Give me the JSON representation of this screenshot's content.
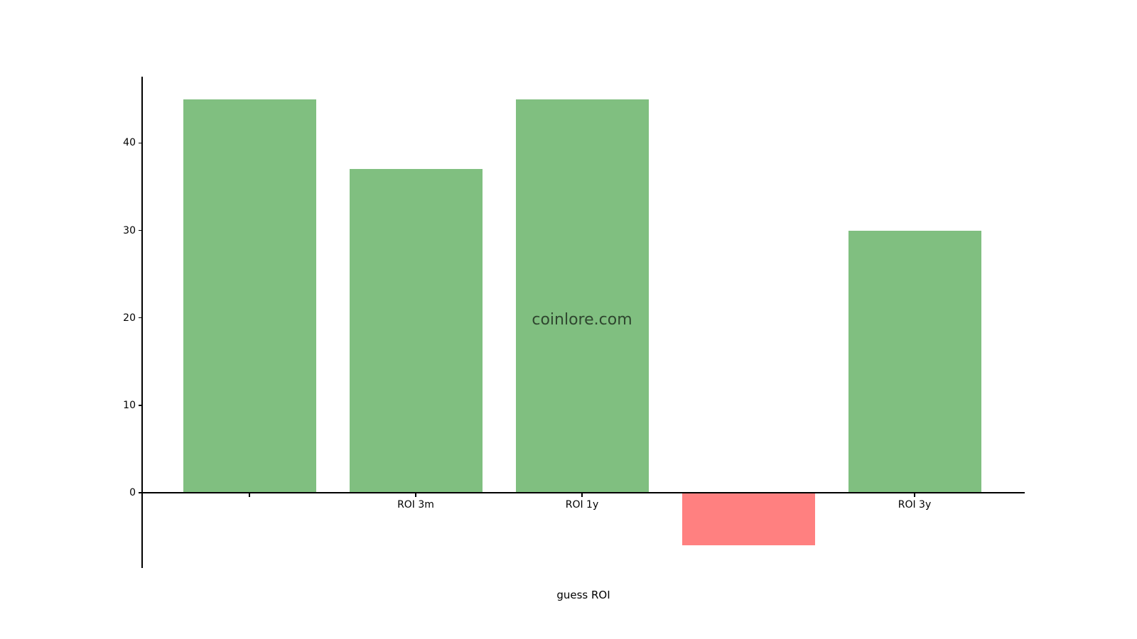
{
  "chart_data": {
    "type": "bar",
    "title": "",
    "xlabel": "guess ROI",
    "ylabel": "",
    "watermark": "coinlore.com",
    "categories": [
      "",
      "ROI 3m",
      "ROI 1y",
      "",
      "ROI 3y"
    ],
    "values": [
      45,
      37,
      45,
      -6,
      30
    ],
    "bar_colors": [
      "#80bf80",
      "#80bf80",
      "#80bf80",
      "#ff8080",
      "#80bf80"
    ],
    "positive_color": "#80bf80",
    "negative_color": "#ff8080",
    "y_ticks": [
      0,
      10,
      20,
      30,
      40
    ],
    "ylim": [
      -8.55,
      47.55
    ],
    "grid": false,
    "legend": null,
    "axis_color": "#000000",
    "tick_text_color": "#000000",
    "watermark_color": "rgba(0,0,0,0.64)"
  }
}
